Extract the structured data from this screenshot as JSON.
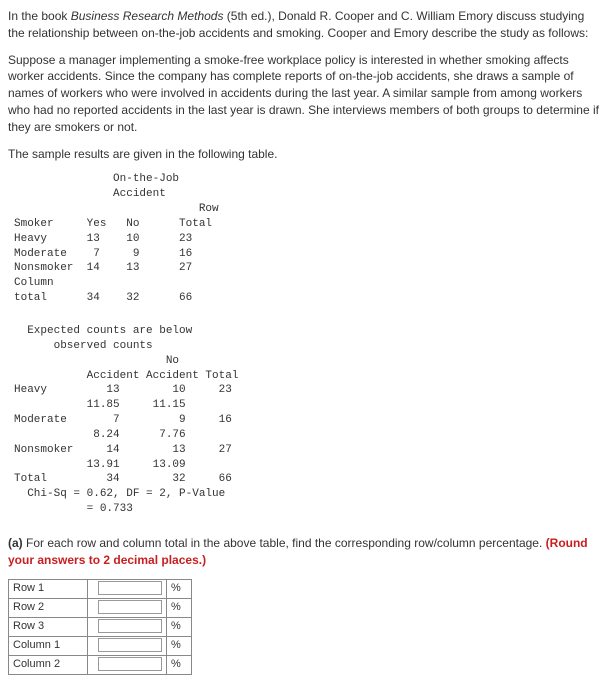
{
  "intro": {
    "line1_pre": "In the book ",
    "book_title": "Business Research Methods",
    "line1_post": " (5th ed.), Donald R. Cooper and C. William Emory discuss studying the relationship between on-the-job accidents and smoking. Cooper and Emory describe the study as follows:"
  },
  "scenario": "Suppose a manager implementing a smoke-free workplace policy is interested in whether smoking affects worker accidents. Since the company has complete reports of on-the-job accidents, she draws a sample of names of workers who were involved in accidents during the last year. A similar sample from among workers who had no reported accidents in the last year is drawn. She interviews members of both groups to determine if they are smokers or not.",
  "lead_in": "The sample results are given in the following table.",
  "observed_table": {
    "title_l1": "On-the-Job",
    "title_l2": "Accident",
    "col_smoker": "Smoker",
    "col_yes": "Yes",
    "col_no": "No",
    "col_rt_l1": "Row",
    "col_rt_l2": "Total",
    "r1": {
      "label": "Heavy",
      "yes": "13",
      "no": "10",
      "tot": "23"
    },
    "r2": {
      "label": "Moderate",
      "yes": "7",
      "no": "9",
      "tot": "16"
    },
    "r3": {
      "label": "Nonsmoker",
      "yes": "14",
      "no": "13",
      "tot": "27"
    },
    "ct_l1": "Column",
    "ct_l2": "total",
    "ct_yes": "34",
    "ct_no": "32",
    "ct_tot": "66"
  },
  "expected_table": {
    "title_l1": "Expected counts are below",
    "title_l2": "observed counts",
    "hdr_blank": "",
    "hdr_acc": "Accident",
    "hdr_noacc_l1": "No",
    "hdr_noacc_l2": "Accident",
    "hdr_total": "Total",
    "rows": [
      {
        "label": "Heavy",
        "o_a": "13",
        "o_na": "10",
        "tot": "23",
        "e_a": "11.85",
        "e_na": "11.15"
      },
      {
        "label": "Moderate",
        "o_a": "7",
        "o_na": "9",
        "tot": "16",
        "e_a": "8.24",
        "e_na": "7.76"
      },
      {
        "label": "Nonsmoker",
        "o_a": "14",
        "o_na": "13",
        "tot": "27",
        "e_a": "13.91",
        "e_na": "13.09"
      }
    ],
    "total_label": "Total",
    "tot_a": "34",
    "tot_na": "32",
    "tot_all": "66",
    "chisq_line": "Chi-Sq = 0.62, DF = 2, P-Value",
    "pval_line": "= 0.733"
  },
  "question": {
    "part_label": "(a)",
    "text": " For each row and column total in the above table, find the corresponding row/column percentage. ",
    "round_note": "(Round your answers to 2 decimal places.)"
  },
  "answer_rows": [
    {
      "label": "Row 1"
    },
    {
      "label": "Row 2"
    },
    {
      "label": "Row 3"
    },
    {
      "label": "Column 1"
    },
    {
      "label": "Column 2"
    }
  ],
  "pct_sign": "%"
}
